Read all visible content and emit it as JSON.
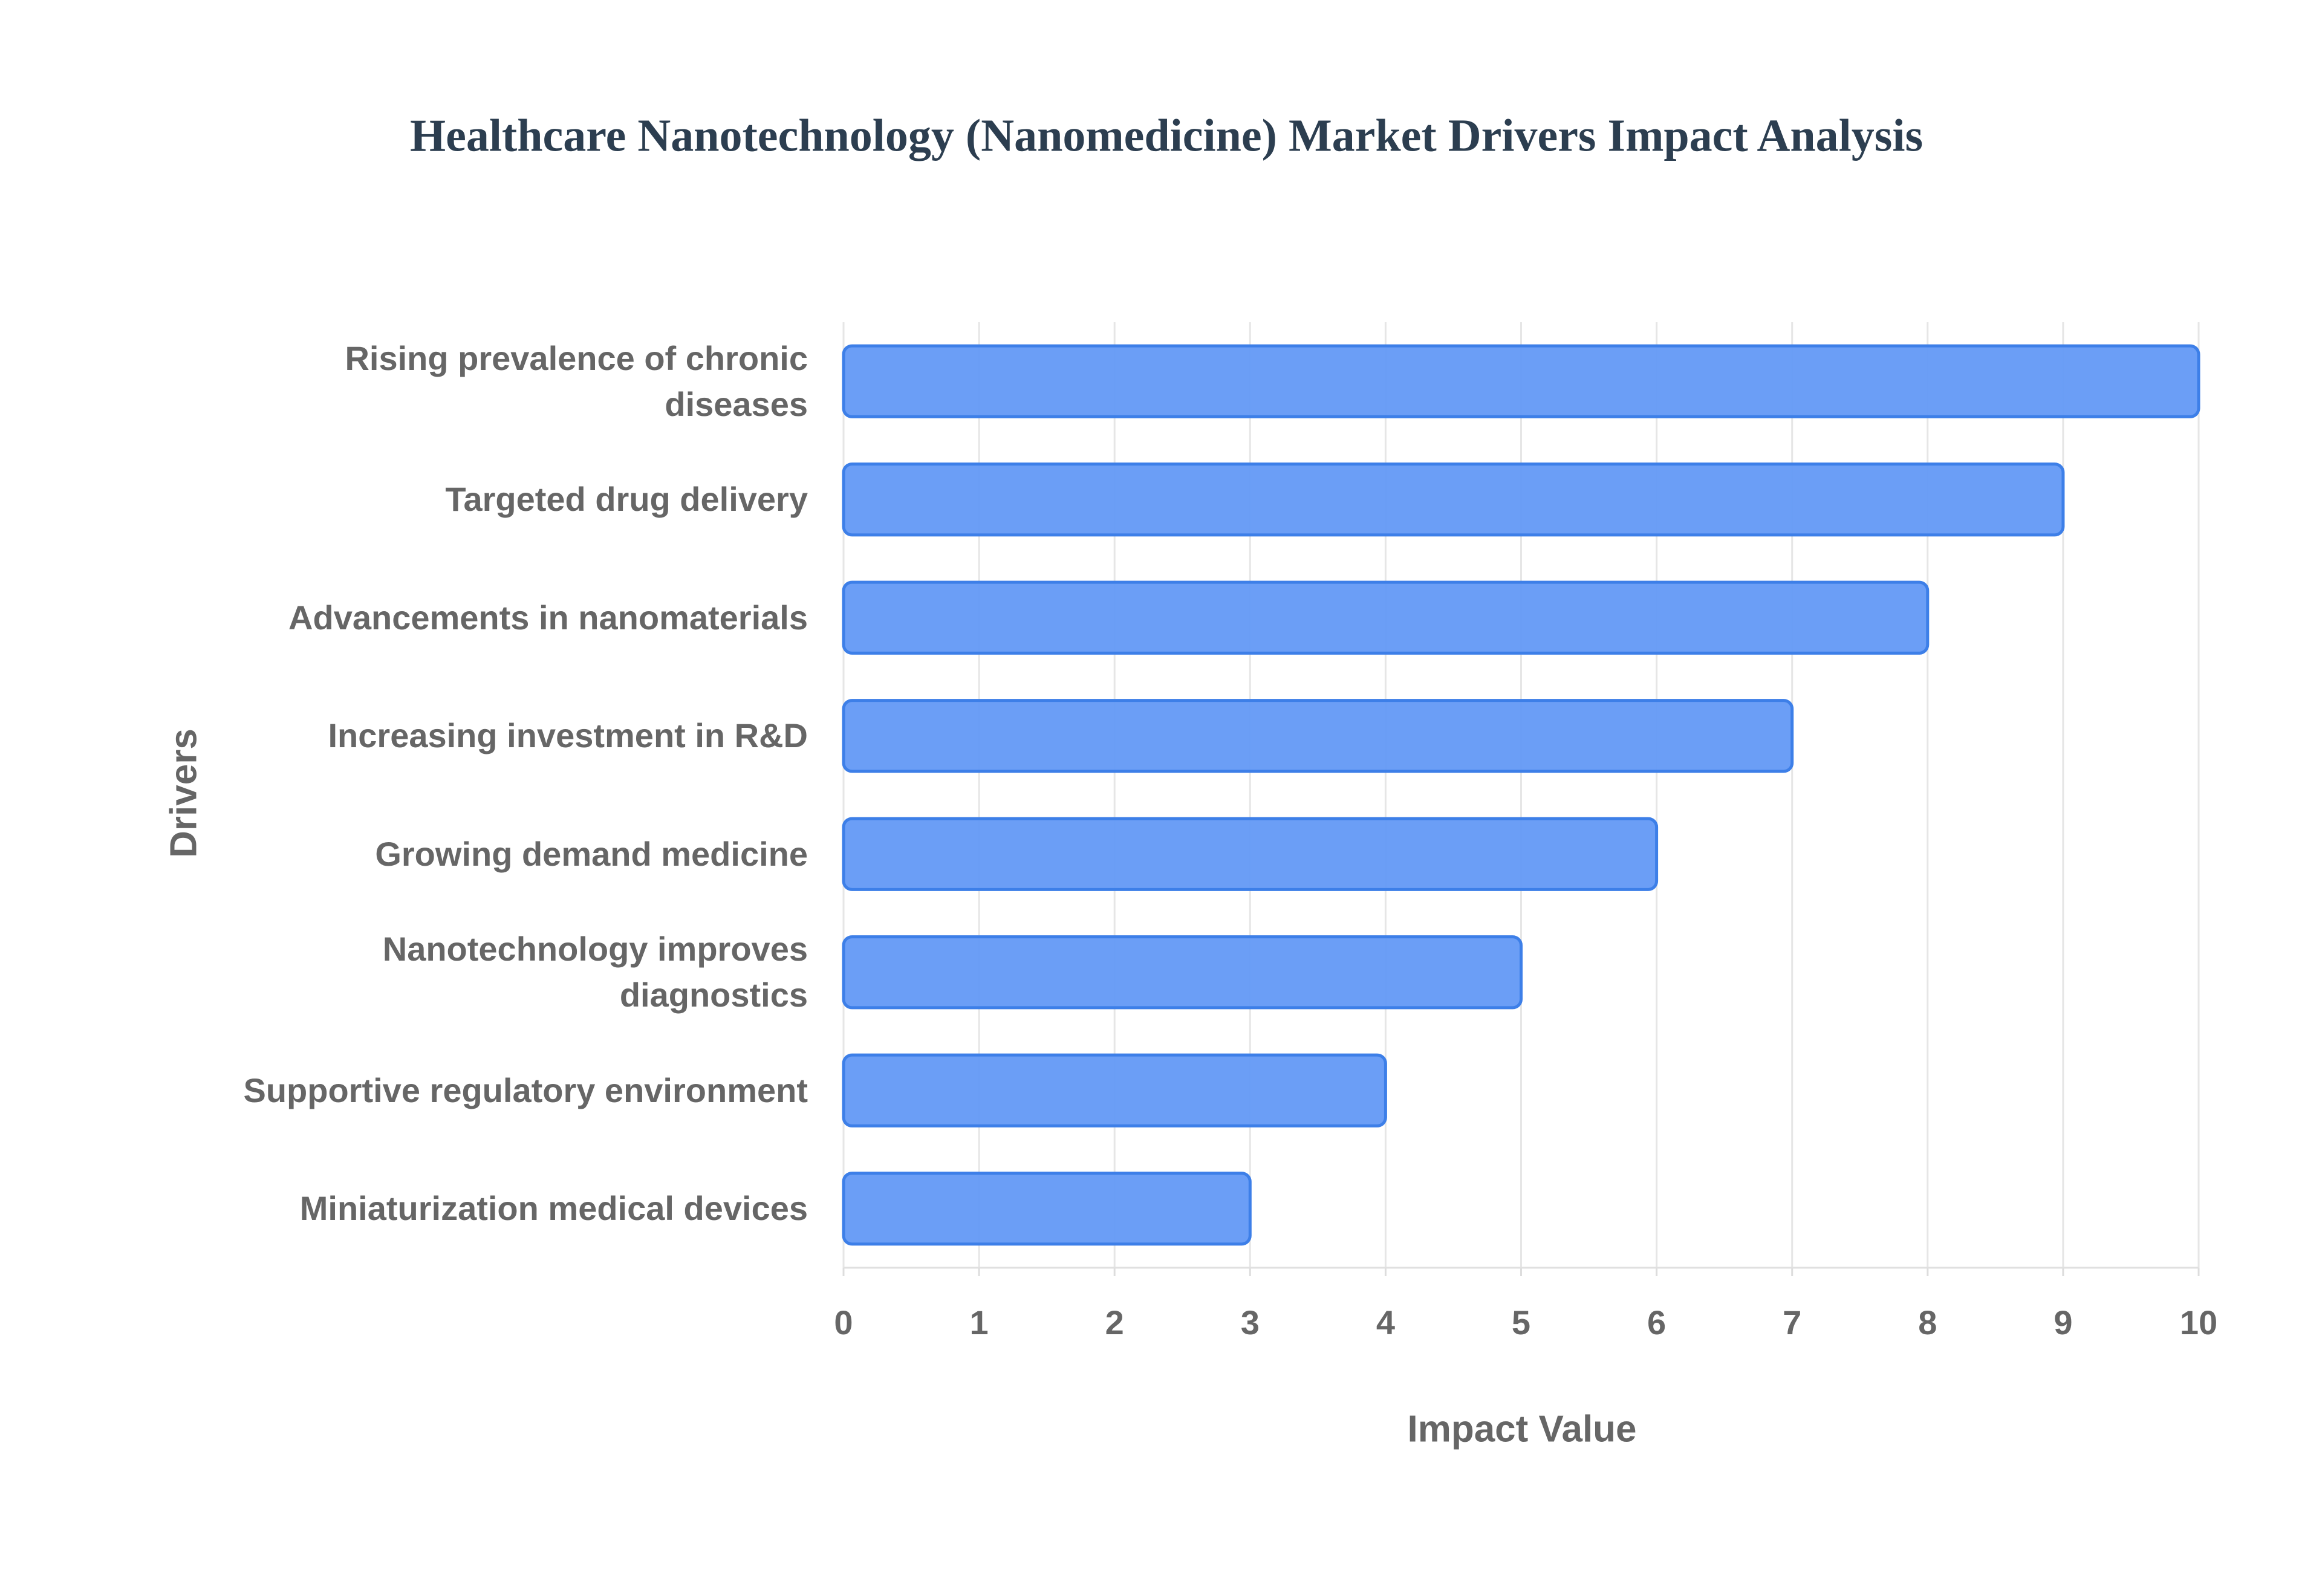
{
  "chart_data": {
    "type": "bar",
    "orientation": "horizontal",
    "title": "Healthcare Nanotechnology (Nanomedicine) Market Drivers Impact Analysis",
    "x_label": "Impact Value",
    "y_label": "Drivers",
    "categories": [
      "Rising prevalence of chronic diseases",
      "Targeted drug delivery",
      "Advancements in nanomaterials",
      "Increasing investment in R&D",
      "Growing demand medicine",
      "Nanotechnology improves diagnostics",
      "Supportive regulatory environment",
      "Miniaturization medical devices"
    ],
    "values": [
      10,
      9,
      8,
      7,
      6,
      5,
      4,
      3
    ],
    "color": "#6399f5",
    "edge_color": "#3d7fe8",
    "xlim": [
      0,
      10
    ],
    "xticks": [
      0,
      1,
      2,
      3,
      4,
      5,
      6,
      7,
      8,
      9,
      10
    ],
    "grid": true
  }
}
